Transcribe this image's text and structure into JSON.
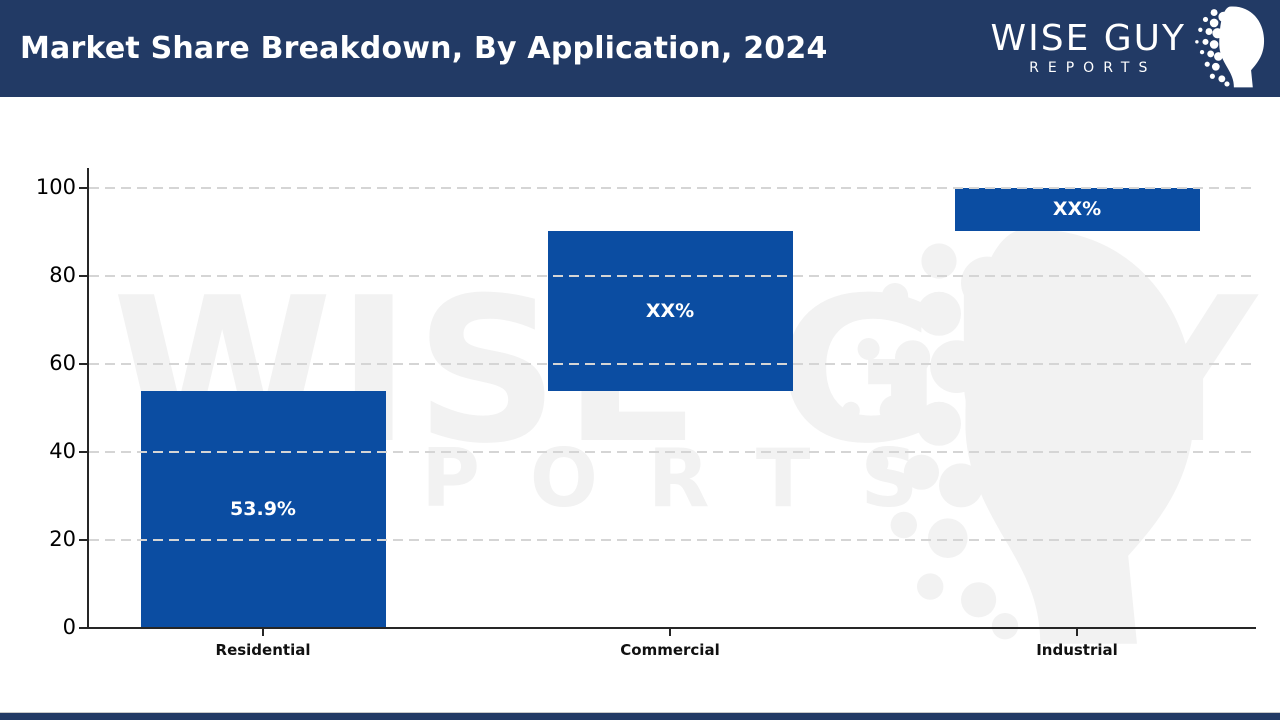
{
  "header": {
    "title": "Market Share Breakdown, By Application, 2024",
    "logo": {
      "line1": "WISE GUY",
      "line2": "REPORTS"
    }
  },
  "watermark": {
    "line1": "WISE GUY",
    "line2": "REPORTS"
  },
  "colors": {
    "header_bg": "#223A65",
    "footer_bg": "#223A65",
    "bar": "#0B4DA2",
    "grid_dash": "#d5d5d5",
    "axis": "#262626",
    "bar_label": "#ffffff",
    "watermark": "#f2f2f2"
  },
  "chart_data": {
    "type": "bar",
    "subtype": "floating-waterfall",
    "title": "Market Share Breakdown, By Application, 2024",
    "categories": [
      "Residential",
      "Commercial",
      "Industrial"
    ],
    "bars": [
      {
        "category": "Residential",
        "from": 0,
        "to": 53.9,
        "label": "53.9%"
      },
      {
        "category": "Commercial",
        "from": 53.9,
        "to": 90.2,
        "label": "XX%"
      },
      {
        "category": "Industrial",
        "from": 90.2,
        "to": 100,
        "label": "XX%"
      }
    ],
    "xlabel": "",
    "ylabel": "",
    "ylim": [
      0,
      100
    ],
    "yticks": [
      0,
      20,
      40,
      60,
      80,
      100
    ],
    "grid": "horizontal-dashed-over-bars",
    "legend": "none"
  }
}
